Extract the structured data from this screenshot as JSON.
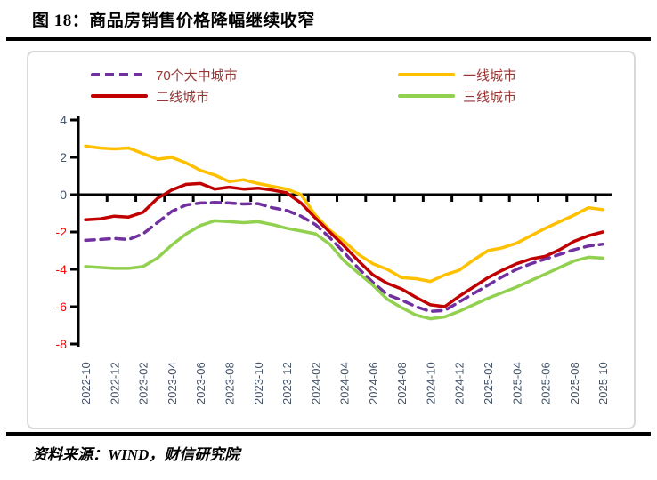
{
  "page": {
    "title": "图 18：商品房销售价格降幅继续收窄",
    "source": "资料来源：WIND，财信研究院"
  },
  "colors": {
    "axis_line": "#000000",
    "axis_label_positive": "#44546A",
    "axis_label_negative": "#FF0000",
    "x_label": "#44546A",
    "legend_text": "#953735",
    "panel_border": "#D9D9D9"
  },
  "chart_data": {
    "type": "line",
    "title": "图 18：商品房销售价格降幅继续收窄",
    "xlabel": "",
    "ylabel": "",
    "ylim": [
      -8,
      4
    ],
    "y_ticks": [
      4,
      2,
      0,
      -2,
      -4,
      -6,
      -8
    ],
    "grid": false,
    "legend_position": "top",
    "x_tick_labels": [
      "2022-10",
      "2022-12",
      "2023-02",
      "2023-04",
      "2023-06",
      "2023-08",
      "2023-10",
      "2023-12",
      "2024-02",
      "2024-04",
      "2024-06",
      "2024-08",
      "2024-10",
      "2024-12",
      "2025-02",
      "2025-04",
      "2025-06",
      "2025-08",
      "2025-10"
    ],
    "categories": [
      "2022-10",
      "2022-11",
      "2022-12",
      "2023-01",
      "2023-02",
      "2023-03",
      "2023-04",
      "2023-05",
      "2023-06",
      "2023-07",
      "2023-08",
      "2023-09",
      "2023-10",
      "2023-11",
      "2023-12",
      "2024-01",
      "2024-02",
      "2024-03",
      "2024-04",
      "2024-05",
      "2024-06",
      "2024-07",
      "2024-08",
      "2024-09",
      "2024-10",
      "2024-11",
      "2024-12",
      "2025-01",
      "2025-02",
      "2025-03",
      "2025-04",
      "2025-05",
      "2025-06",
      "2025-07",
      "2025-08",
      "2025-09",
      "2025-10"
    ],
    "series": [
      {
        "name": "70个大中城市",
        "color": "#7030A0",
        "dash": true,
        "values": [
          -2.45,
          -2.4,
          -2.35,
          -2.4,
          -2.1,
          -1.5,
          -0.9,
          -0.55,
          -0.45,
          -0.42,
          -0.45,
          -0.5,
          -0.48,
          -0.7,
          -0.85,
          -1.15,
          -1.6,
          -2.3,
          -3.1,
          -3.95,
          -4.7,
          -5.35,
          -5.65,
          -6.0,
          -6.25,
          -6.2,
          -5.75,
          -5.3,
          -4.85,
          -4.4,
          -4.0,
          -3.7,
          -3.45,
          -3.2,
          -2.95,
          -2.75,
          -2.65
        ]
      },
      {
        "name": "一线城市",
        "color": "#FFC000",
        "dash": false,
        "values": [
          2.6,
          2.5,
          2.45,
          2.5,
          2.2,
          1.9,
          2.0,
          1.7,
          1.3,
          1.05,
          0.7,
          0.8,
          0.6,
          0.45,
          0.3,
          0.0,
          -1.1,
          -1.9,
          -2.5,
          -3.2,
          -3.7,
          -4.0,
          -4.45,
          -4.5,
          -4.65,
          -4.3,
          -4.05,
          -3.5,
          -3.0,
          -2.85,
          -2.6,
          -2.2,
          -1.8,
          -1.45,
          -1.1,
          -0.7,
          -0.8
        ]
      },
      {
        "name": "二线城市",
        "color": "#C00000",
        "dash": false,
        "values": [
          -1.35,
          -1.3,
          -1.15,
          -1.2,
          -0.95,
          -0.2,
          0.25,
          0.55,
          0.6,
          0.3,
          0.4,
          0.3,
          0.35,
          0.25,
          0.1,
          -0.45,
          -1.25,
          -2.0,
          -2.75,
          -3.55,
          -4.3,
          -4.75,
          -5.05,
          -5.5,
          -5.9,
          -6.0,
          -5.45,
          -4.95,
          -4.45,
          -4.05,
          -3.7,
          -3.45,
          -3.3,
          -2.95,
          -2.5,
          -2.2,
          -2.0
        ]
      },
      {
        "name": "三线城市",
        "color": "#92D050",
        "dash": false,
        "values": [
          -3.85,
          -3.9,
          -3.95,
          -3.95,
          -3.85,
          -3.4,
          -2.7,
          -2.1,
          -1.65,
          -1.4,
          -1.45,
          -1.5,
          -1.45,
          -1.6,
          -1.8,
          -1.95,
          -2.1,
          -2.65,
          -3.55,
          -4.2,
          -4.85,
          -5.6,
          -6.05,
          -6.45,
          -6.65,
          -6.55,
          -6.25,
          -5.9,
          -5.55,
          -5.25,
          -4.95,
          -4.6,
          -4.25,
          -3.9,
          -3.55,
          -3.35,
          -3.4
        ]
      }
    ]
  }
}
